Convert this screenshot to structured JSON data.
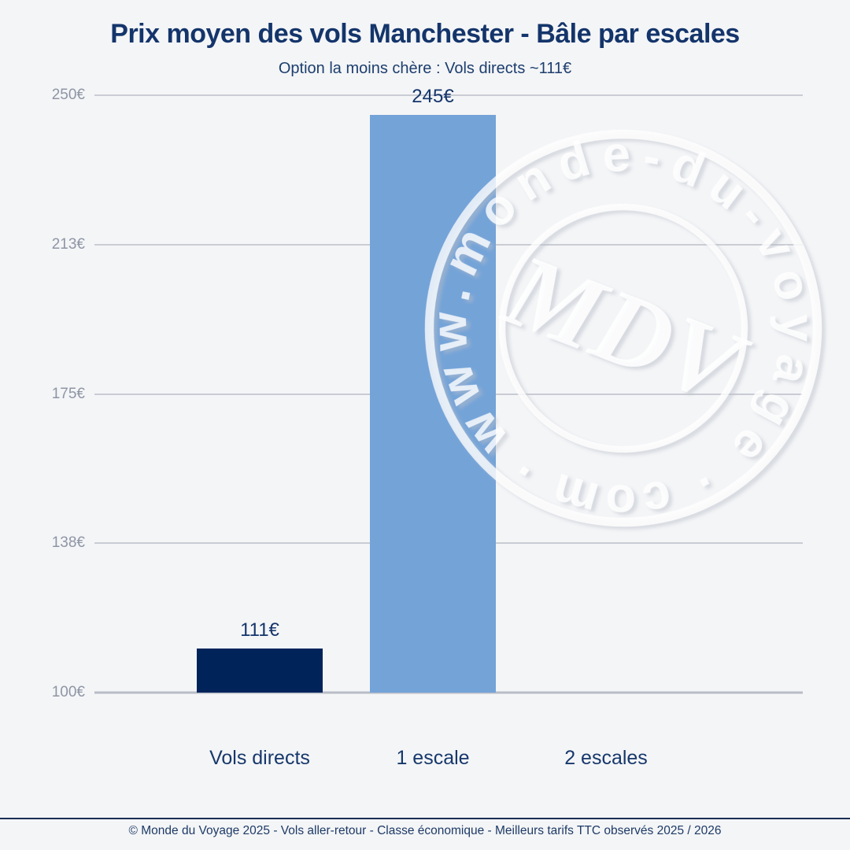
{
  "title": "Prix moyen des vols Manchester - Bâle par escales",
  "subtitle": "Option la moins chère : Vols directs ~111€",
  "watermark": {
    "ring_text": "www.monde-du-voyage",
    "ring_suffix": "· com ·",
    "monogram": "MDV"
  },
  "footer": {
    "text": "© Monde du Voyage 2025 - Vols aller-retour - Classe économique - Meilleurs tarifs TTC observés 2025 / 2026"
  },
  "colors": {
    "background": "#f4f5f7",
    "title": "#14356b",
    "axis_label": "#8e95a4",
    "gridline": "#c9ccd3",
    "baseline": "#b9bdc6",
    "bar_direct": "#00235a",
    "bar_one_stop": "#74a3d8",
    "footer_line": "#1b2f55",
    "footer_text": "#1d3a66"
  },
  "chart_data": {
    "type": "bar",
    "title": "Prix moyen des vols Manchester - Bâle par escales",
    "subtitle": "Option la moins chère : Vols directs ~111€",
    "categories": [
      "Vols directs",
      "1 escale",
      "2 escales"
    ],
    "values": [
      111,
      245,
      null
    ],
    "value_labels": [
      "111€",
      "245€",
      null
    ],
    "bar_colors": [
      "#00235a",
      "#74a3d8",
      null
    ],
    "xlabel": "",
    "ylabel": "",
    "ylim": [
      100,
      250
    ],
    "yticks": [
      {
        "value": 250,
        "label": "250€"
      },
      {
        "value": 212.5,
        "label": "213€"
      },
      {
        "value": 175,
        "label": "175€"
      },
      {
        "value": 137.5,
        "label": "138€"
      },
      {
        "value": 100,
        "label": "100€"
      }
    ],
    "grid": true,
    "legend": false,
    "currency": "€"
  }
}
